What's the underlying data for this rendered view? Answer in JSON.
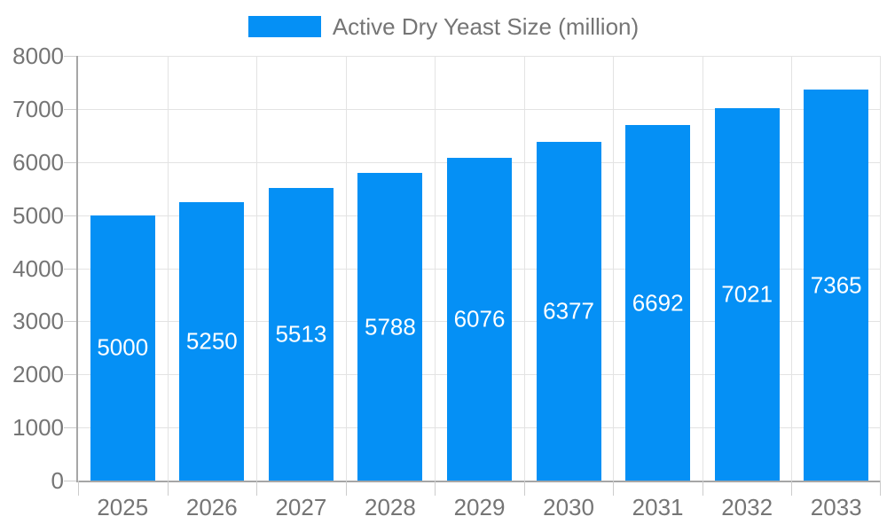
{
  "legend": {
    "label": "Active Dry Yeast Size (million)"
  },
  "chart_data": {
    "type": "bar",
    "title": "Active Dry Yeast Size (million)",
    "categories": [
      "2025",
      "2026",
      "2027",
      "2028",
      "2029",
      "2030",
      "2031",
      "2032",
      "2033"
    ],
    "values": [
      5000,
      5250,
      5513,
      5788,
      6076,
      6377,
      6692,
      7021,
      7365
    ],
    "xlabel": "",
    "ylabel": "",
    "ylim": [
      0,
      8000
    ],
    "ytick_step": 1000,
    "grid": true,
    "legend_position": "top-center",
    "value_labels": "inside-center"
  },
  "colors": {
    "bar": "#0590f5",
    "grid": "#e3e3e3",
    "tick": "#cccccc",
    "axis": "#a6a6a6",
    "axis_text": "#757575",
    "bar_label_text": "#ffffff",
    "background": "#ffffff"
  }
}
